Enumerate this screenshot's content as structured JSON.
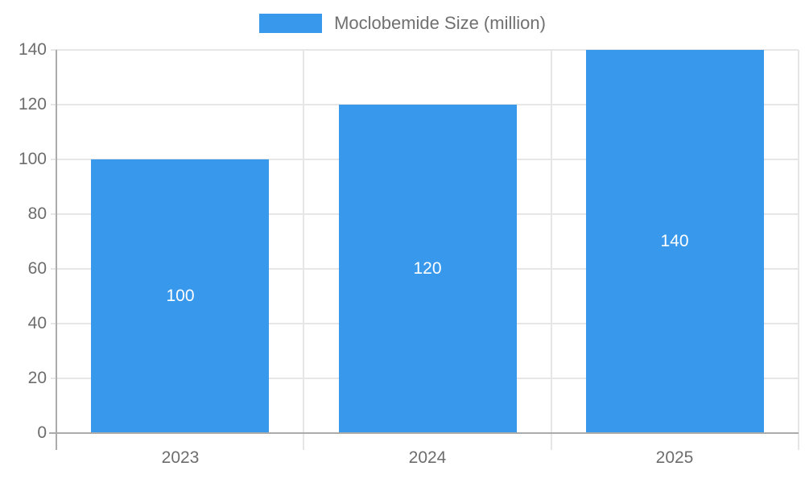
{
  "colors": {
    "bar": "#3898ec",
    "grid": "#e6e6e6",
    "axis": "#ababab",
    "tick_text": "#6d6d6d",
    "legend_text": "#707070",
    "bar_label_text": "#ffffff",
    "background": "#ffffff"
  },
  "chart_data": {
    "type": "bar",
    "title": "",
    "categories": [
      "2023",
      "2024",
      "2025"
    ],
    "series": [
      {
        "name": "Moclobemide Size (million)",
        "values": [
          100,
          120,
          140
        ]
      }
    ],
    "bar_labels": [
      "100",
      "120",
      "140"
    ],
    "xlabel": "",
    "ylabel": "",
    "ylim": [
      0,
      140
    ],
    "ytick_step": 20,
    "yticks": [
      0,
      20,
      40,
      60,
      80,
      100,
      120,
      140
    ],
    "grid": true,
    "legend_position": "top"
  }
}
